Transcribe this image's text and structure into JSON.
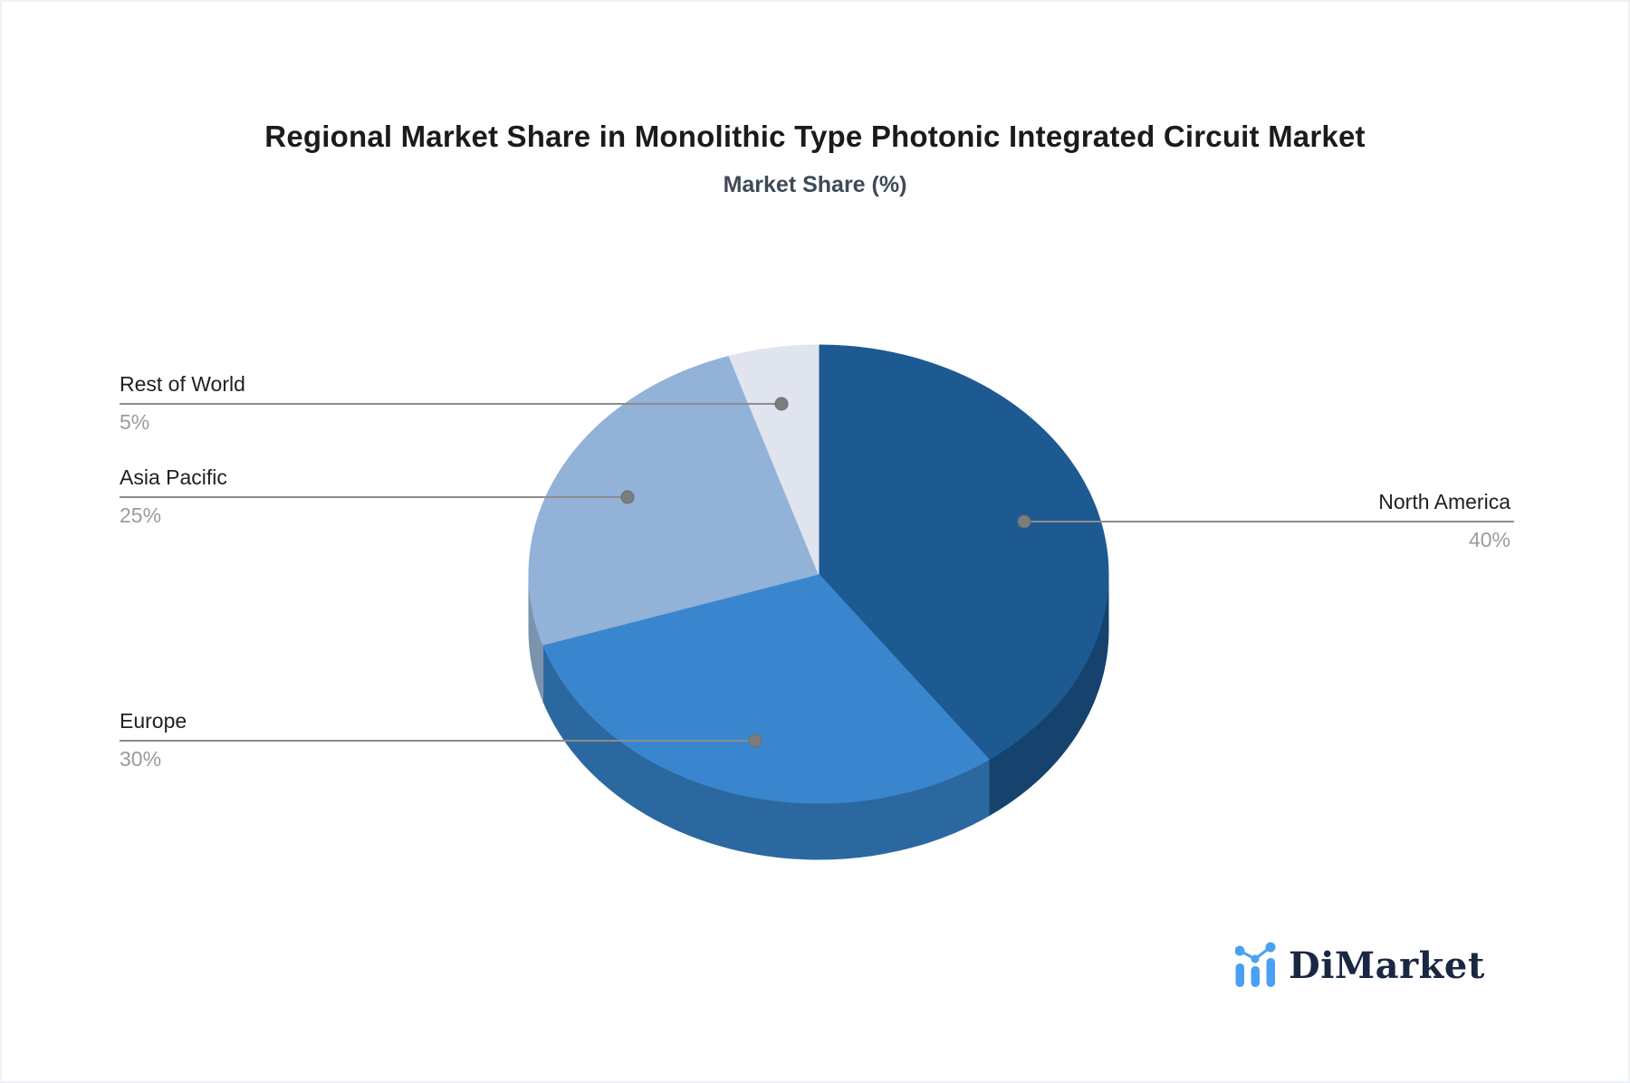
{
  "title": "Regional Market Share in Monolithic Type Photonic Integrated Circuit Market",
  "subtitle": "Market Share (%)",
  "chart_data": {
    "type": "pie",
    "title": "Regional Market Share in Monolithic Type Photonic Integrated Circuit Market",
    "subtitle": "Market Share (%)",
    "unit": "%",
    "style": "3d-pie",
    "start_angle": "top",
    "direction": "clockwise",
    "legend_position": "callout-labels",
    "slices": [
      {
        "label": "North America",
        "value": 40,
        "display": "40%",
        "color": "#1e5a92",
        "side_color": "#16436d"
      },
      {
        "label": "Europe",
        "value": 30,
        "display": "30%",
        "color": "#3a86ce",
        "side_color": "#2b689f"
      },
      {
        "label": "Asia Pacific",
        "value": 25,
        "display": "25%",
        "color": "#92b2d8",
        "side_color": "#7b94ae"
      },
      {
        "label": "Rest of World",
        "value": 5,
        "display": "5%",
        "color": "#dfe4ee",
        "side_color": "#c4cdd9"
      }
    ],
    "callout_line_color": "#8c8c8c",
    "callout_dot_color": "#7d7d7d",
    "label_color": "#1f1f1f",
    "value_color": "#9b9b9b"
  },
  "branding": {
    "logo_text": "DiMarket",
    "logo_accent_color": "#4aa0f2"
  }
}
